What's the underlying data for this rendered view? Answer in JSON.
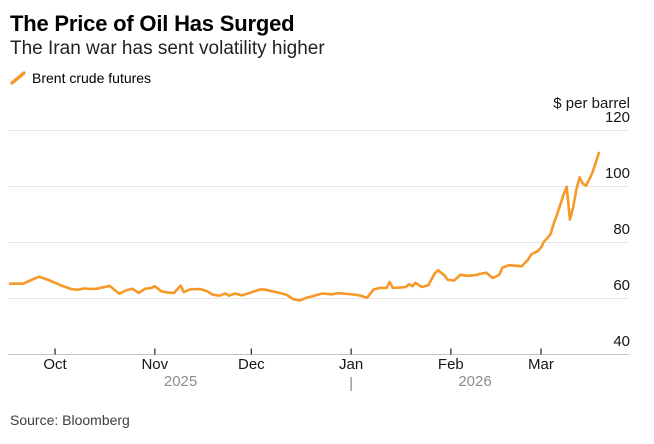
{
  "header": {
    "title": "The Price of Oil Has Surged",
    "subtitle": "The Iran war has sent volatility higher"
  },
  "legend": {
    "label": "Brent crude futures",
    "color": "#F79928"
  },
  "source": "Source: Bloomberg",
  "colors": {
    "line": "#F79928",
    "gridline": "#E7E7E7",
    "axis_line": "#C6C6C6",
    "tick_mark": "#222222",
    "year_text": "#8C8C8C"
  },
  "chart_data": {
    "type": "line",
    "title": "The Price of Oil Has Surged",
    "subtitle": "The Iran war has sent volatility higher",
    "series_name": "Brent crude futures",
    "unit_label": "$ per barrel",
    "ylim": [
      40,
      120
    ],
    "yticks": [
      40,
      60,
      80,
      100,
      120
    ],
    "grid": "horizontal",
    "legend_position": "top-left",
    "x_month_ticks": [
      {
        "date": "2025-10-01",
        "label": "Oct"
      },
      {
        "date": "2025-11-01",
        "label": "Nov"
      },
      {
        "date": "2025-12-01",
        "label": "Dec"
      },
      {
        "date": "2026-01-01",
        "label": "Jan"
      },
      {
        "date": "2026-02-01",
        "label": "Feb"
      },
      {
        "date": "2026-03-01",
        "label": "Mar"
      }
    ],
    "year_labels": [
      {
        "label": "2025",
        "from": "2025-09-17",
        "to": "2026-01-01"
      },
      {
        "label": "2026",
        "from": "2026-01-01",
        "to": "2026-03-19"
      }
    ],
    "year_divider_date": "2026-01-01",
    "points": [
      [
        "2025-09-17",
        65.3
      ],
      [
        "2025-09-21",
        65.3
      ],
      [
        "2025-09-24",
        66.8
      ],
      [
        "2025-09-26",
        67.8
      ],
      [
        "2025-09-29",
        66.6
      ],
      [
        "2025-10-01",
        65.6
      ],
      [
        "2025-10-03",
        64.6
      ],
      [
        "2025-10-06",
        63.4
      ],
      [
        "2025-10-08",
        63.1
      ],
      [
        "2025-10-10",
        63.6
      ],
      [
        "2025-10-12",
        63.4
      ],
      [
        "2025-10-14",
        63.5
      ],
      [
        "2025-10-16",
        64.0
      ],
      [
        "2025-10-18",
        64.5
      ],
      [
        "2025-10-20",
        62.6
      ],
      [
        "2025-10-21",
        61.7
      ],
      [
        "2025-10-23",
        62.9
      ],
      [
        "2025-10-25",
        63.5
      ],
      [
        "2025-10-27",
        62.0
      ],
      [
        "2025-10-29",
        63.5
      ],
      [
        "2025-10-31",
        63.8
      ],
      [
        "2025-11-01",
        64.4
      ],
      [
        "2025-11-03",
        62.6
      ],
      [
        "2025-11-05",
        62.1
      ],
      [
        "2025-11-07",
        62.0
      ],
      [
        "2025-11-09",
        64.6
      ],
      [
        "2025-11-10",
        62.3
      ],
      [
        "2025-11-12",
        63.3
      ],
      [
        "2025-11-15",
        63.4
      ],
      [
        "2025-11-17",
        62.7
      ],
      [
        "2025-11-19",
        61.4
      ],
      [
        "2025-11-21",
        61.0
      ],
      [
        "2025-11-23",
        61.8
      ],
      [
        "2025-11-24",
        61.0
      ],
      [
        "2025-11-26",
        61.8
      ],
      [
        "2025-11-28",
        61.1
      ],
      [
        "2025-11-30",
        61.8
      ],
      [
        "2025-12-02",
        62.6
      ],
      [
        "2025-12-04",
        63.3
      ],
      [
        "2025-12-06",
        63.0
      ],
      [
        "2025-12-09",
        62.2
      ],
      [
        "2025-12-12",
        61.3
      ],
      [
        "2025-12-14",
        59.8
      ],
      [
        "2025-12-16",
        59.3
      ],
      [
        "2025-12-18",
        60.2
      ],
      [
        "2025-12-20",
        60.8
      ],
      [
        "2025-12-23",
        61.8
      ],
      [
        "2025-12-26",
        61.5
      ],
      [
        "2025-12-28",
        61.9
      ],
      [
        "2025-12-31",
        61.6
      ],
      [
        "2026-01-02",
        61.4
      ],
      [
        "2026-01-04",
        61.0
      ],
      [
        "2026-01-06",
        60.3
      ],
      [
        "2026-01-08",
        63.2
      ],
      [
        "2026-01-10",
        63.8
      ],
      [
        "2026-01-12",
        63.8
      ],
      [
        "2026-01-13",
        65.9
      ],
      [
        "2026-01-14",
        63.8
      ],
      [
        "2026-01-16",
        63.9
      ],
      [
        "2026-01-18",
        64.1
      ],
      [
        "2026-01-19",
        65.1
      ],
      [
        "2026-01-20",
        64.4
      ],
      [
        "2026-01-21",
        65.6
      ],
      [
        "2026-01-23",
        64.1
      ],
      [
        "2026-01-25",
        64.7
      ],
      [
        "2026-01-27",
        69.0
      ],
      [
        "2026-01-28",
        70.1
      ],
      [
        "2026-01-30",
        68.3
      ],
      [
        "2026-01-31",
        66.7
      ],
      [
        "2026-02-02",
        66.4
      ],
      [
        "2026-02-04",
        68.5
      ],
      [
        "2026-02-06",
        68.1
      ],
      [
        "2026-02-09",
        68.4
      ],
      [
        "2026-02-10",
        68.8
      ],
      [
        "2026-02-12",
        69.2
      ],
      [
        "2026-02-14",
        67.3
      ],
      [
        "2026-02-16",
        68.4
      ],
      [
        "2026-02-17",
        71.0
      ],
      [
        "2026-02-19",
        71.9
      ],
      [
        "2026-02-21",
        71.7
      ],
      [
        "2026-02-23",
        71.5
      ],
      [
        "2026-02-25",
        73.9
      ],
      [
        "2026-02-26",
        75.8
      ],
      [
        "2026-02-28",
        76.9
      ],
      [
        "2026-03-01",
        78.2
      ],
      [
        "2026-03-02",
        80.4
      ],
      [
        "2026-03-03",
        81.6
      ],
      [
        "2026-03-04",
        83.0
      ],
      [
        "2026-03-05",
        86.9
      ],
      [
        "2026-03-06",
        90.0
      ],
      [
        "2026-03-07",
        93.5
      ],
      [
        "2026-03-08",
        97.0
      ],
      [
        "2026-03-09",
        99.9
      ],
      [
        "2026-03-10",
        88.2
      ],
      [
        "2026-03-11",
        92.5
      ],
      [
        "2026-03-12",
        99.0
      ],
      [
        "2026-03-13",
        103.3
      ],
      [
        "2026-03-14",
        101.0
      ],
      [
        "2026-03-15",
        100.3
      ],
      [
        "2026-03-16",
        102.5
      ],
      [
        "2026-03-17",
        105.0
      ],
      [
        "2026-03-18",
        108.5
      ],
      [
        "2026-03-19",
        112.0
      ]
    ]
  }
}
